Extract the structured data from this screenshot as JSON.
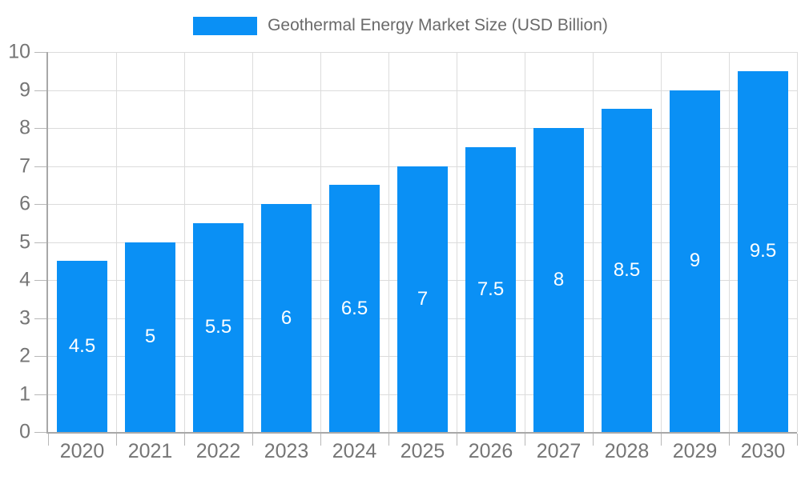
{
  "legend": {
    "label": "Geothermal Energy Market Size (USD Billion)"
  },
  "chart_data": {
    "type": "bar",
    "title": "Geothermal Energy Market Size (USD Billion)",
    "series_name": "Geothermal Energy Market Size (USD Billion)",
    "categories": [
      "2020",
      "2021",
      "2022",
      "2023",
      "2024",
      "2025",
      "2026",
      "2027",
      "2028",
      "2029",
      "2030"
    ],
    "values": [
      4.5,
      5,
      5.5,
      6,
      6.5,
      7,
      7.5,
      8,
      8.5,
      9,
      9.5
    ],
    "value_labels": [
      "4.5",
      "5",
      "5.5",
      "6",
      "6.5",
      "7",
      "7.5",
      "8",
      "8.5",
      "9",
      "9.5"
    ],
    "xlabel": "",
    "ylabel": "",
    "ylim": [
      0,
      10
    ],
    "yticks": [
      0,
      1,
      2,
      3,
      4,
      5,
      6,
      7,
      8,
      9,
      10
    ],
    "ytick_labels": [
      "0",
      "1",
      "2",
      "3",
      "4",
      "5",
      "6",
      "7",
      "8",
      "9",
      "10"
    ],
    "grid": true,
    "legend_position": "top-center",
    "value_labels_position": "inside-middle"
  },
  "colors": {
    "bar": "#0a90f5",
    "axis_text": "#757575",
    "value_label_text": "#ffffff",
    "legend_text": "#6a6a6a",
    "gridline": "#dcdcdc",
    "axis_line": "#a8a8a8",
    "background": "#ffffff"
  }
}
